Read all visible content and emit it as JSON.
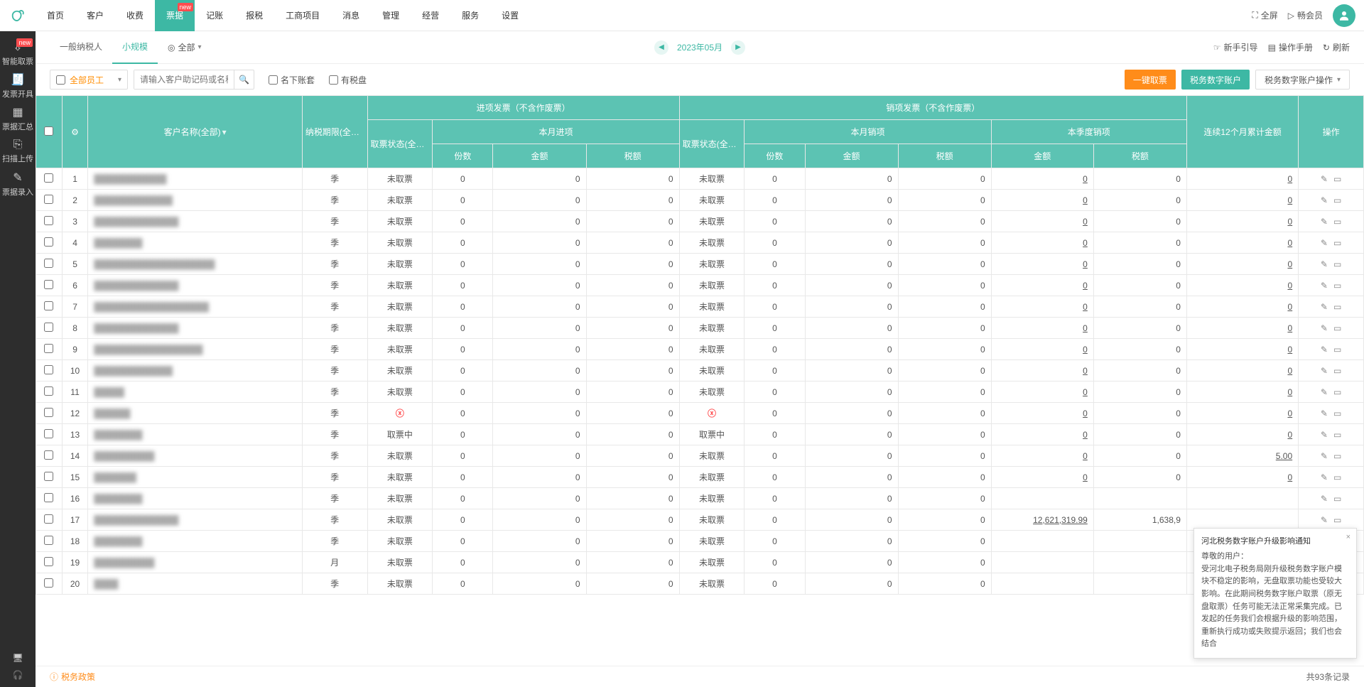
{
  "topnav": {
    "items": [
      "首页",
      "客户",
      "收费",
      "票据",
      "记账",
      "报税",
      "工商项目",
      "消息",
      "管理",
      "经营",
      "服务",
      "设置"
    ],
    "active_index": 3,
    "badges": {
      "3": "new"
    },
    "right": {
      "fullscreen": "全屏",
      "member": "畅会员"
    }
  },
  "sidebar": {
    "items": [
      {
        "label": "智能取票",
        "badge": "new"
      },
      {
        "label": "发票开具"
      },
      {
        "label": "票据汇总"
      },
      {
        "label": "扫描上传"
      },
      {
        "label": "票据录入"
      }
    ]
  },
  "tabs": {
    "general": "一般纳税人",
    "small": "小规模",
    "region": "全部"
  },
  "date": {
    "label": "2023年05月"
  },
  "toolbar_links": {
    "guide": "新手引导",
    "manual": "操作手册",
    "refresh": "刷新"
  },
  "filter": {
    "employee": "全部员工",
    "search_placeholder": "请输入客户助记码或名称",
    "under_account": "名下账套",
    "has_disk": "有税盘",
    "btn_fetch": "一键取票",
    "btn_digital": "税务数字账户",
    "btn_ops": "税务数字账户操作"
  },
  "table": {
    "headers": {
      "customer": "客户名称(全部)",
      "period": "纳税期限(全部)",
      "in_group": "进项发票（不含作废票）",
      "out_group": "销项发票（不含作废票）",
      "fetch_status": "取票状态(全部)",
      "month_in": "本月进项",
      "month_out": "本月销项",
      "quarter_out": "本季度销项",
      "count": "份数",
      "amount": "金额",
      "tax": "税额",
      "rolling12": "连续12个月累计金额",
      "action": "操作"
    },
    "rows": [
      {
        "n": 1,
        "name": "████████████",
        "p": "季",
        "s1": "未取票",
        "c1": 0,
        "a1": "0",
        "t1": "0",
        "s2": "未取票",
        "c2": 0,
        "a2": "0",
        "t2": "0",
        "qa": "0",
        "qt": "0",
        "r12": "0"
      },
      {
        "n": 2,
        "name": "█████████████",
        "p": "季",
        "s1": "未取票",
        "c1": 0,
        "a1": "0",
        "t1": "0",
        "s2": "未取票",
        "c2": 0,
        "a2": "0",
        "t2": "0",
        "qa": "0",
        "qt": "0",
        "r12": "0"
      },
      {
        "n": 3,
        "name": "██████████████",
        "p": "季",
        "s1": "未取票",
        "c1": 0,
        "a1": "0",
        "t1": "0",
        "s2": "未取票",
        "c2": 0,
        "a2": "0",
        "t2": "0",
        "qa": "0",
        "qt": "0",
        "r12": "0"
      },
      {
        "n": 4,
        "name": "████████",
        "p": "季",
        "s1": "未取票",
        "c1": 0,
        "a1": "0",
        "t1": "0",
        "s2": "未取票",
        "c2": 0,
        "a2": "0",
        "t2": "0",
        "qa": "0",
        "qt": "0",
        "r12": "0"
      },
      {
        "n": 5,
        "name": "████████████████████",
        "p": "季",
        "s1": "未取票",
        "c1": 0,
        "a1": "0",
        "t1": "0",
        "s2": "未取票",
        "c2": 0,
        "a2": "0",
        "t2": "0",
        "qa": "0",
        "qt": "0",
        "r12": "0"
      },
      {
        "n": 6,
        "name": "██████████████",
        "p": "季",
        "s1": "未取票",
        "c1": 0,
        "a1": "0",
        "t1": "0",
        "s2": "未取票",
        "c2": 0,
        "a2": "0",
        "t2": "0",
        "qa": "0",
        "qt": "0",
        "r12": "0"
      },
      {
        "n": 7,
        "name": "███████████████████",
        "p": "季",
        "s1": "未取票",
        "c1": 0,
        "a1": "0",
        "t1": "0",
        "s2": "未取票",
        "c2": 0,
        "a2": "0",
        "t2": "0",
        "qa": "0",
        "qt": "0",
        "r12": "0"
      },
      {
        "n": 8,
        "name": "██████████████",
        "p": "季",
        "s1": "未取票",
        "c1": 0,
        "a1": "0",
        "t1": "0",
        "s2": "未取票",
        "c2": 0,
        "a2": "0",
        "t2": "0",
        "qa": "0",
        "qt": "0",
        "r12": "0"
      },
      {
        "n": 9,
        "name": "██████████████████",
        "p": "季",
        "s1": "未取票",
        "c1": 0,
        "a1": "0",
        "t1": "0",
        "s2": "未取票",
        "c2": 0,
        "a2": "0",
        "t2": "0",
        "qa": "0",
        "qt": "0",
        "r12": "0"
      },
      {
        "n": 10,
        "name": "█████████████",
        "p": "季",
        "s1": "未取票",
        "c1": 0,
        "a1": "0",
        "t1": "0",
        "s2": "未取票",
        "c2": 0,
        "a2": "0",
        "t2": "0",
        "qa": "0",
        "qt": "0",
        "r12": "0"
      },
      {
        "n": 11,
        "name": "█████",
        "p": "季",
        "s1": "未取票",
        "c1": 0,
        "a1": "0",
        "t1": "0",
        "s2": "未取票",
        "c2": 0,
        "a2": "0",
        "t2": "0",
        "qa": "0",
        "qt": "0",
        "r12": "0"
      },
      {
        "n": 12,
        "name": "██████",
        "p": "季",
        "s1": "error",
        "c1": 0,
        "a1": "0",
        "t1": "0",
        "s2": "error",
        "c2": 0,
        "a2": "0",
        "t2": "0",
        "qa": "0",
        "qt": "0",
        "r12": "0"
      },
      {
        "n": 13,
        "name": "████████",
        "p": "季",
        "s1": "取票中",
        "c1": 0,
        "a1": "0",
        "t1": "0",
        "s2": "取票中",
        "c2": 0,
        "a2": "0",
        "t2": "0",
        "qa": "0",
        "qt": "0",
        "r12": "0"
      },
      {
        "n": 14,
        "name": "██████████",
        "p": "季",
        "s1": "未取票",
        "c1": 0,
        "a1": "0",
        "t1": "0",
        "s2": "未取票",
        "c2": 0,
        "a2": "0",
        "t2": "0",
        "qa": "0",
        "qt": "0",
        "r12": "5.00"
      },
      {
        "n": 15,
        "name": "███████",
        "p": "季",
        "s1": "未取票",
        "c1": 0,
        "a1": "0",
        "t1": "0",
        "s2": "未取票",
        "c2": 0,
        "a2": "0",
        "t2": "0",
        "qa": "0",
        "qt": "0",
        "r12": "0"
      },
      {
        "n": 16,
        "name": "████████",
        "p": "季",
        "s1": "未取票",
        "c1": 0,
        "a1": "0",
        "t1": "0",
        "s2": "未取票",
        "c2": 0,
        "a2": "0",
        "t2": "0",
        "qa": "",
        "qt": "",
        "r12": ""
      },
      {
        "n": 17,
        "name": "██████████████",
        "p": "季",
        "s1": "未取票",
        "c1": 0,
        "a1": "0",
        "t1": "0",
        "s2": "未取票",
        "c2": 0,
        "a2": "0",
        "t2": "0",
        "qa": "12,621,319.99",
        "qt": "1,638,9",
        "r12": ""
      },
      {
        "n": 18,
        "name": "████████",
        "p": "季",
        "s1": "未取票",
        "c1": 0,
        "a1": "0",
        "t1": "0",
        "s2": "未取票",
        "c2": 0,
        "a2": "0",
        "t2": "0",
        "qa": "",
        "qt": "",
        "r12": ""
      },
      {
        "n": 19,
        "name": "██████████",
        "p": "月",
        "s1": "未取票",
        "c1": 0,
        "a1": "0",
        "t1": "0",
        "s2": "未取票",
        "c2": 0,
        "a2": "0",
        "t2": "0",
        "qa": "",
        "qt": "",
        "r12": ""
      },
      {
        "n": 20,
        "name": "████",
        "p": "季",
        "s1": "未取票",
        "c1": 0,
        "a1": "0",
        "t1": "0",
        "s2": "未取票",
        "c2": 0,
        "a2": "0",
        "t2": "0",
        "qa": "",
        "qt": "",
        "r12": ""
      }
    ]
  },
  "footer": {
    "policy": "税务政策",
    "total": "共93条记录"
  },
  "notif": {
    "title": "河北税务数字账户升级影响通知",
    "greeting": "尊敬的用户：",
    "body": "受河北电子税务局刚升级税务数字账户模块不稳定的影响，无盘取票功能也受较大影响。在此期间税务数字账户取票（原无盘取票）任务可能无法正常采集完成。已发起的任务我们会根据升级的影响范围，重新执行成功或失败提示返回；我们也会结合"
  }
}
